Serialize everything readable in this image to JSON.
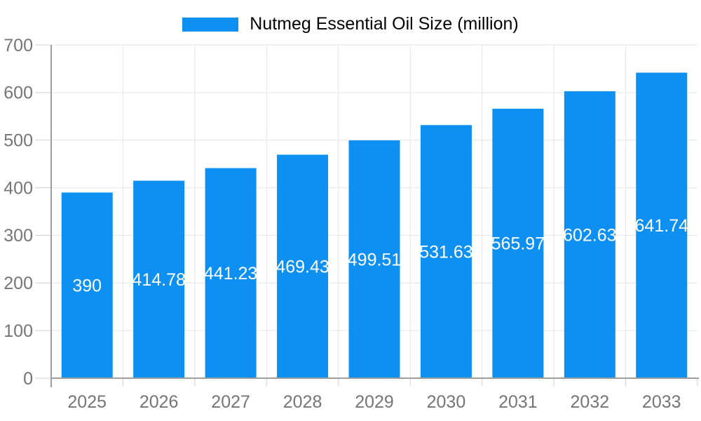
{
  "chart_data": {
    "type": "bar",
    "title": "Nutmeg Essential Oil Size (million)",
    "legend": {
      "label": "Nutmeg Essential Oil Size (million)",
      "position": "top-center"
    },
    "categories": [
      "2025",
      "2026",
      "2027",
      "2028",
      "2029",
      "2030",
      "2031",
      "2032",
      "2033"
    ],
    "values": [
      390,
      414.78,
      441.23,
      469.43,
      499.51,
      531.63,
      565.97,
      602.63,
      641.74
    ],
    "value_labels": [
      "390",
      "414.78",
      "441.23",
      "469.43",
      "499.51",
      "531.63",
      "565.97",
      "602.63",
      "641.74"
    ],
    "xlabel": "",
    "ylabel": "",
    "ylim": [
      0,
      700
    ],
    "yticks": [
      0,
      100,
      200,
      300,
      400,
      500,
      600,
      700
    ],
    "ytick_labels": [
      "0",
      "100",
      "200",
      "300",
      "400",
      "500",
      "600",
      "700"
    ],
    "grid": true,
    "colors": {
      "bar": "#0d90f2",
      "axis": "#9e9e9e",
      "grid": "#e4e4e4",
      "tick": "#cfcfcf",
      "axis_label": "#757575",
      "value_label": "#ffffff",
      "background": "#ffffff"
    }
  }
}
